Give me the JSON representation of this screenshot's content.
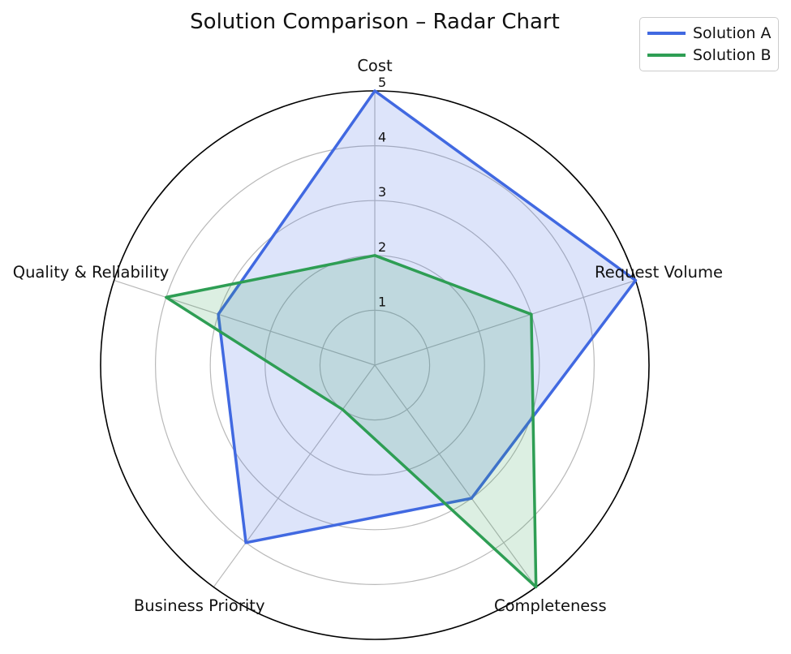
{
  "title": "Solution Comparison – Radar Chart",
  "legend": {
    "position": "upper right",
    "items": [
      {
        "label": "Solution A",
        "color": "#4169E1"
      },
      {
        "label": "Solution B",
        "color": "#2E9E54"
      }
    ]
  },
  "chart_data": {
    "type": "radar",
    "title": "Solution Comparison – Radar Chart",
    "categories": [
      "Cost",
      "Request Volume",
      "Completeness",
      "Business Priority",
      "Quality & Reliability"
    ],
    "series": [
      {
        "name": "Solution A",
        "color": "#4169E1",
        "values": [
          5,
          5,
          3,
          4,
          3
        ],
        "fill_opacity": 0.18
      },
      {
        "name": "Solution B",
        "color": "#2E9E54",
        "values": [
          2,
          3,
          5,
          1,
          4
        ],
        "fill_opacity": 0.17
      }
    ],
    "radial_ticks": [
      1,
      2,
      3,
      4,
      5
    ],
    "r_max": 5,
    "start_angle_deg": 90,
    "direction": "clockwise",
    "grid": true,
    "legend_position": "upper right"
  },
  "colors": {
    "background": "#ffffff",
    "grid": "#b9b9b9",
    "outer_ring": "#000000",
    "text": "#111111"
  }
}
